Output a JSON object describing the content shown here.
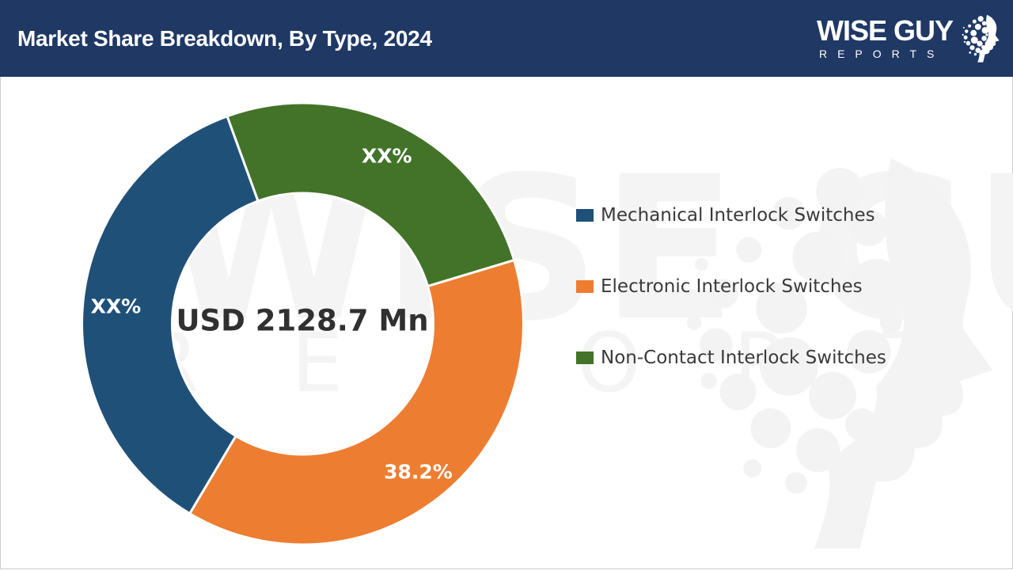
{
  "header": {
    "title": "Market Share Breakdown, By Type, 2024",
    "background_color": "#1f3864",
    "brand": {
      "name": "WISE GUY",
      "subtitle": "REPORTS"
    }
  },
  "watermark": {
    "line1": "WISE GUY",
    "line2": "R E P O R T S"
  },
  "chart_data": {
    "type": "pie",
    "subtype": "donut",
    "title": "Market Share Breakdown, By Type, 2024",
    "center_label": "USD 2128.7 Mn",
    "start_angle_deg": 110,
    "direction": "counterclockwise",
    "inner_radius_ratio": 0.59,
    "legend_position": "right",
    "categories": [
      "Mechanical Interlock Switches",
      "Electronic Interlock Switches",
      "Non-Contact Interlock Switches"
    ],
    "segments": [
      {
        "label": "Mechanical Interlock Switches",
        "color": "#1f5078",
        "value_pct": 35.9,
        "value_label": "XX%"
      },
      {
        "label": "Electronic Interlock Switches",
        "color": "#ed7d31",
        "value_pct": 38.2,
        "value_label": "38.2%"
      },
      {
        "label": "Non-Contact Interlock Switches",
        "color": "#427329",
        "value_pct": 25.9,
        "value_label": "XX%"
      }
    ]
  }
}
